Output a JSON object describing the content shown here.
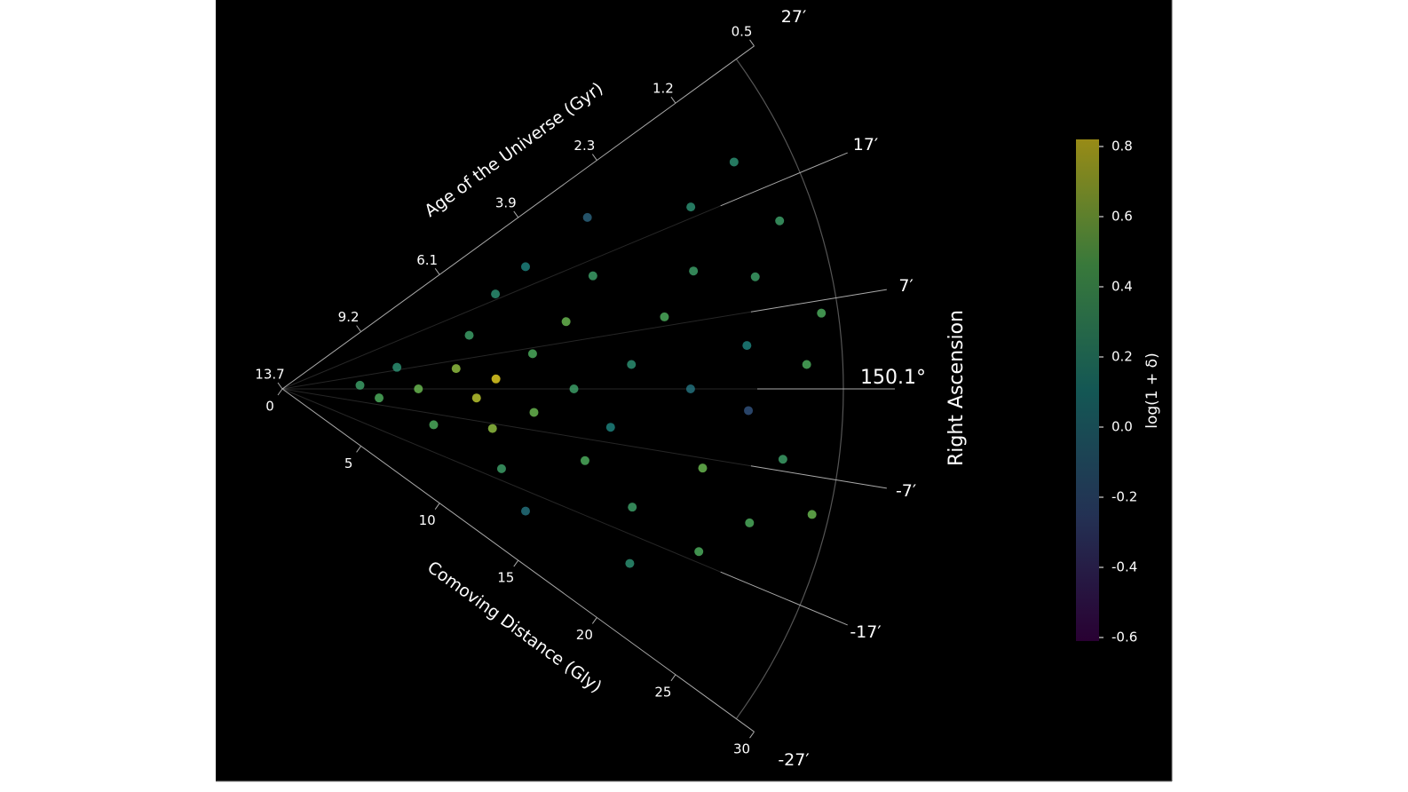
{
  "chart_data": {
    "type": "polar_wedge_scatter",
    "theta_label": "Right Ascension",
    "r_label": "Comoving Distance (Gly)",
    "age_label": "Age of the Universe (Gyr)",
    "rlim": [
      0,
      30
    ],
    "thetalim": [
      -27,
      27
    ],
    "rticks": [
      0,
      5,
      10,
      15,
      20,
      25,
      30
    ],
    "age_ticks": [
      {
        "value": 0,
        "label": "13.7"
      },
      {
        "value": 5,
        "label": "9.2"
      },
      {
        "value": 10,
        "label": "6.1"
      },
      {
        "value": 15,
        "label": "3.9"
      },
      {
        "value": 20,
        "label": "2.3"
      },
      {
        "value": 25,
        "label": "1.2"
      },
      {
        "value": 30,
        "label": "0.5"
      }
    ],
    "thetaticks": [
      {
        "value": 27,
        "label": "27′"
      },
      {
        "value": 17,
        "label": "17′"
      },
      {
        "value": 7,
        "label": "7′"
      },
      {
        "value": 0,
        "label": "150.1°"
      },
      {
        "value": -7,
        "label": "-7′"
      },
      {
        "value": -17,
        "label": "-17′"
      },
      {
        "value": -27,
        "label": "-27′"
      }
    ],
    "colormap": "viridis",
    "colorbar_label": "log(1 + δ)",
    "clim": [
      -0.6,
      0.8
    ],
    "cticks": [
      0.8,
      0.6,
      0.4,
      0.2,
      0.0,
      -0.2,
      -0.4,
      -0.6
    ],
    "points": {
      "r": [
        4,
        5,
        6,
        7,
        8,
        9,
        10,
        10,
        11,
        11,
        12,
        12,
        13,
        13,
        14,
        14,
        15,
        15,
        16,
        17,
        17,
        18,
        18,
        19,
        20,
        20,
        21,
        22,
        22,
        23,
        23,
        24,
        24,
        25,
        25,
        26,
        26,
        27,
        27,
        28,
        28
      ],
      "theta": [
        2,
        -4,
        8,
        0,
        -10,
        5,
        -2,
        12,
        2,
        -8,
        18,
        -15,
        -4,
        6,
        20,
        -20,
        0,
        10,
        -10,
        15,
        -5,
        3,
        22,
        -14,
        8,
        -20,
        0,
        12,
        -8,
        18,
        -16,
        4,
        -2,
        10,
        -12,
        20,
        -6,
        2,
        14,
        -10,
        6
      ],
      "value": [
        0.3,
        0.4,
        0.2,
        0.5,
        0.4,
        0.6,
        0.7,
        0.3,
        0.8,
        0.6,
        0.2,
        0.3,
        0.5,
        0.4,
        0.1,
        0.0,
        0.3,
        0.5,
        0.4,
        0.3,
        0.1,
        0.2,
        -0.1,
        0.3,
        0.4,
        0.2,
        0.0,
        0.3,
        0.5,
        0.2,
        0.4,
        0.1,
        -0.2,
        0.3,
        0.4,
        0.2,
        0.3,
        0.4,
        0.3,
        0.5,
        0.4
      ]
    }
  }
}
